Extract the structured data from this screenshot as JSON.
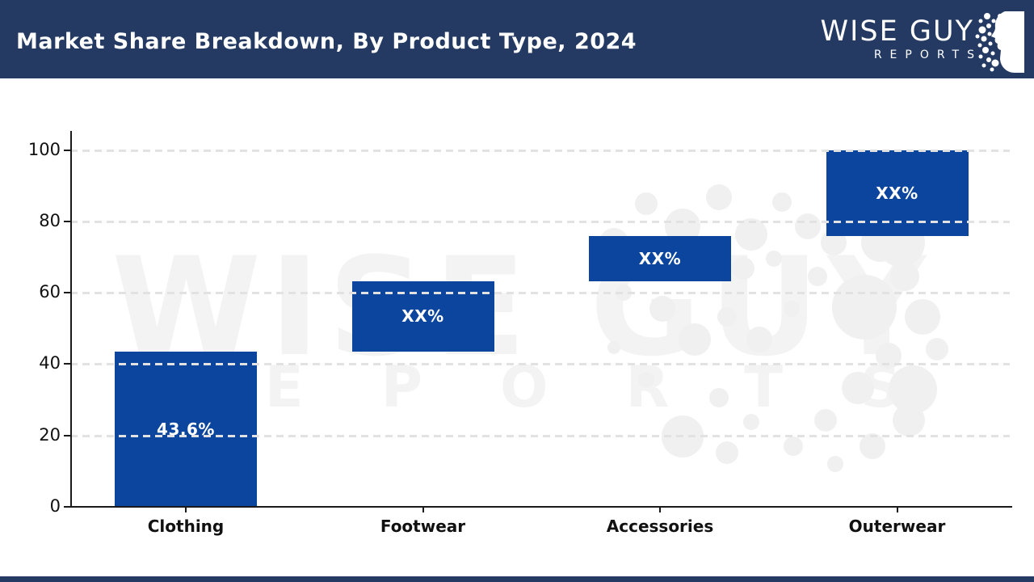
{
  "header": {
    "title": "Market Share Breakdown, By Product Type, 2024",
    "bg_color": "#243a63",
    "logo": {
      "line1": "WISE GUY",
      "line2": "REPORTS"
    }
  },
  "watermark": {
    "line1": "WISE GUY",
    "line2": "REPORTS"
  },
  "footer": {
    "bg_color": "#243a63"
  },
  "chart_data": {
    "type": "bar",
    "subtype": "waterfall",
    "title": "Market Share Breakdown, By Product Type, 2024",
    "categories": [
      "Clothing",
      "Footwear",
      "Accessories",
      "Outerwear"
    ],
    "segments": [
      {
        "category": "Clothing",
        "start": 0,
        "end": 43.6,
        "label": "43.6%"
      },
      {
        "category": "Footwear",
        "start": 43.6,
        "end": 63.2,
        "label": "XX%"
      },
      {
        "category": "Accessories",
        "start": 63.2,
        "end": 75.8,
        "label": "XX%"
      },
      {
        "category": "Outerwear",
        "start": 75.8,
        "end": 100,
        "label": "XX%"
      }
    ],
    "y_ticks": [
      0,
      20,
      40,
      60,
      80,
      100
    ],
    "ylim": [
      0,
      100
    ],
    "xlabel": "",
    "ylabel": "",
    "bar_color": "#0c459d",
    "label_color": "#ffffff",
    "grid": true,
    "gridline_style": "dashed",
    "legend": false
  }
}
